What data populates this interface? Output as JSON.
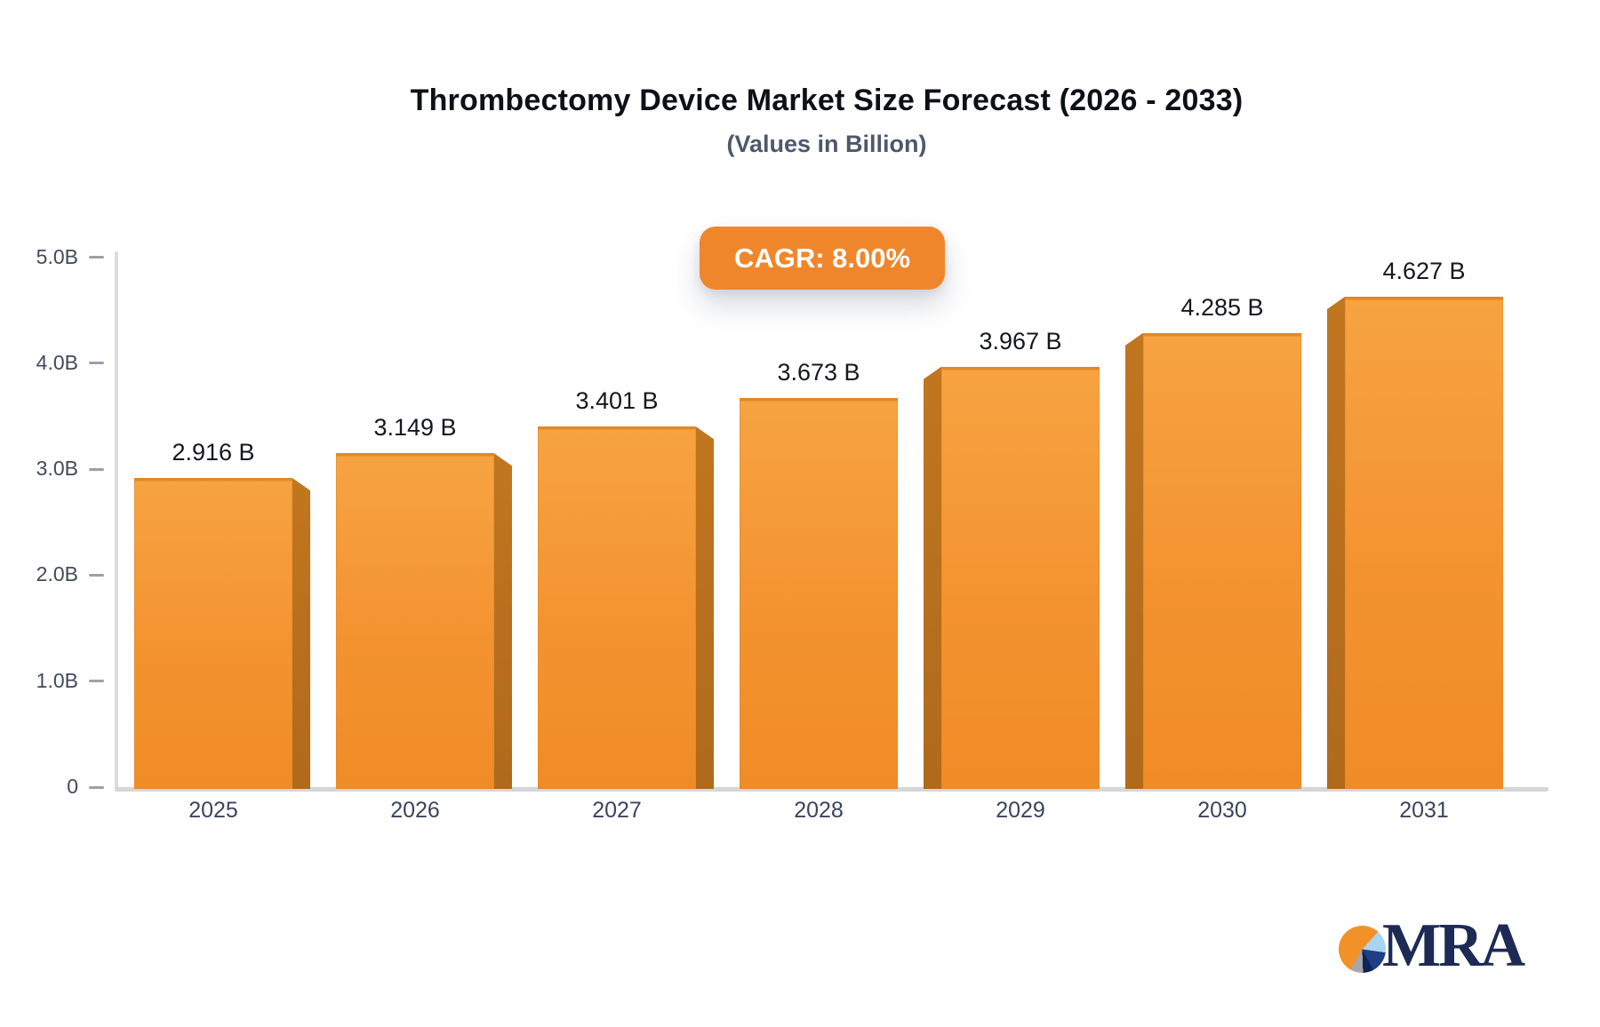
{
  "chart_data": {
    "type": "bar",
    "title": "Thrombectomy Device Market Size Forecast (2026 - 2033)",
    "subtitle": "(Values in Billion)",
    "annotation": "CAGR: 8.00%",
    "categories": [
      "2025",
      "2026",
      "2027",
      "2028",
      "2029",
      "2030",
      "2031"
    ],
    "values": [
      2.916,
      3.149,
      3.401,
      3.673,
      3.967,
      4.285,
      4.627
    ],
    "value_labels": [
      "2.916 B",
      "3.149 B",
      "3.401 B",
      "3.673 B",
      "3.967 B",
      "4.285 B",
      "4.627 B"
    ],
    "xlabel": "",
    "ylabel": "",
    "ylim": [
      0,
      5
    ],
    "ytick_labels": [
      "5.0B",
      "4.0B",
      "3.0B",
      "2.0B",
      "1.0B",
      "0"
    ],
    "ytick_values": [
      5,
      4,
      3,
      2,
      1,
      0
    ],
    "grid": "off",
    "legend": "none"
  },
  "colors": {
    "badge_bg": "#F0862B",
    "bar_face": "#F39330",
    "bar_side": "#B96F1E",
    "axis_line": "#D5D7DC",
    "title_text": "#0D1017",
    "subtitle_text": "#4E586B",
    "logo_navy": "#1C2A55"
  },
  "logo": {
    "wordmark": "MRA",
    "icon": "pie-chart-icon"
  }
}
